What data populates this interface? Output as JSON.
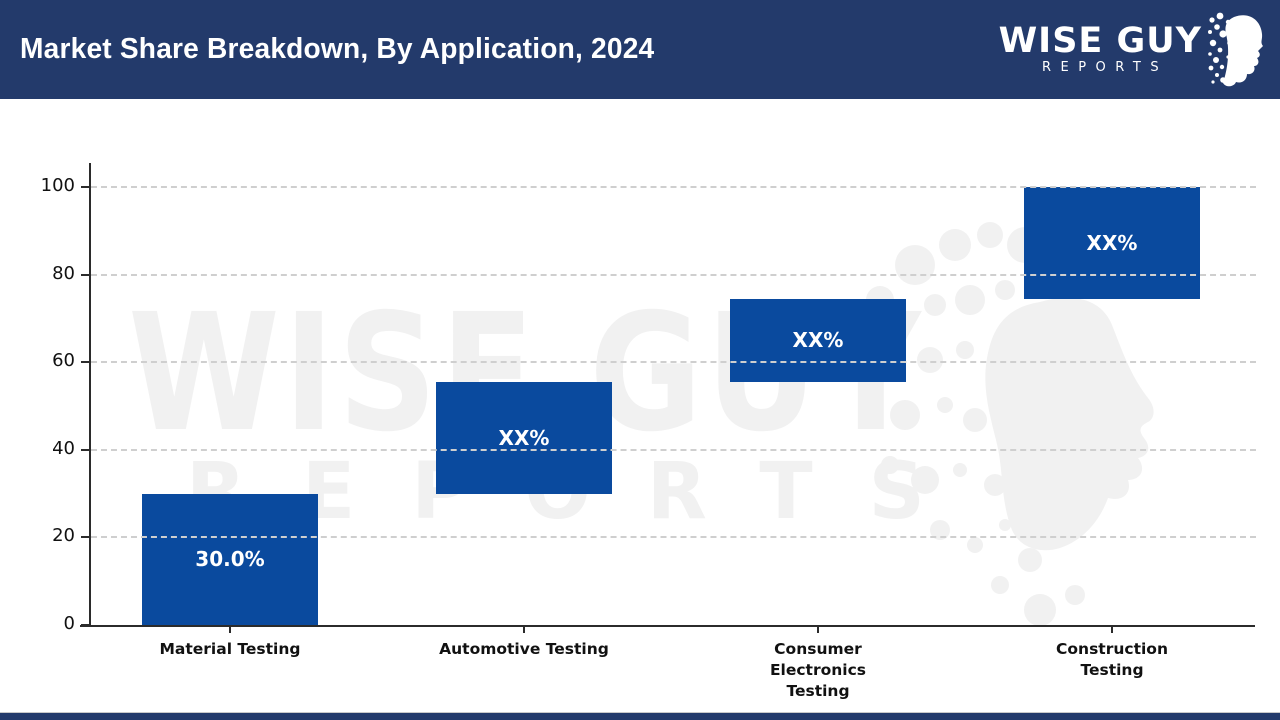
{
  "header": {
    "title": "Market Share Breakdown, By Application, 2024",
    "logo": {
      "brand": "WISE GUY",
      "sub": "REPORTS"
    }
  },
  "watermark": {
    "brand": "WISE GUY",
    "sub": "REPORTS"
  },
  "chart_data": {
    "type": "bar",
    "subtype": "waterfall",
    "title": "Market Share Breakdown, By Application, 2024",
    "categories": [
      "Material Testing",
      "Automotive Testing",
      "Consumer\nElectronics\nTesting",
      "Construction\nTesting"
    ],
    "segments": [
      {
        "category": "Material Testing",
        "start": 0,
        "end": 30,
        "label": "30.0%"
      },
      {
        "category": "Automotive Testing",
        "start": 30,
        "end": 55.5,
        "label": "XX%"
      },
      {
        "category": "Consumer Electronics Testing",
        "start": 55.5,
        "end": 74.5,
        "label": "XX%"
      },
      {
        "category": "Construction Testing",
        "start": 74.5,
        "end": 100,
        "label": "XX%"
      }
    ],
    "yticks": [
      0,
      20,
      40,
      60,
      80,
      100
    ],
    "ylim": [
      0,
      105
    ],
    "xlabel": "",
    "ylabel": "",
    "grid": "dashed-horizontal",
    "legend": "none",
    "bar_color": "#0a4a9e",
    "bar_label_color": "#ffffff"
  },
  "colors": {
    "header_bg": "#233a6b",
    "footer_bg": "#233a6b",
    "grid": "#cfcfcf",
    "axis": "#2b2b2b",
    "watermark": "#f1f1f1"
  }
}
